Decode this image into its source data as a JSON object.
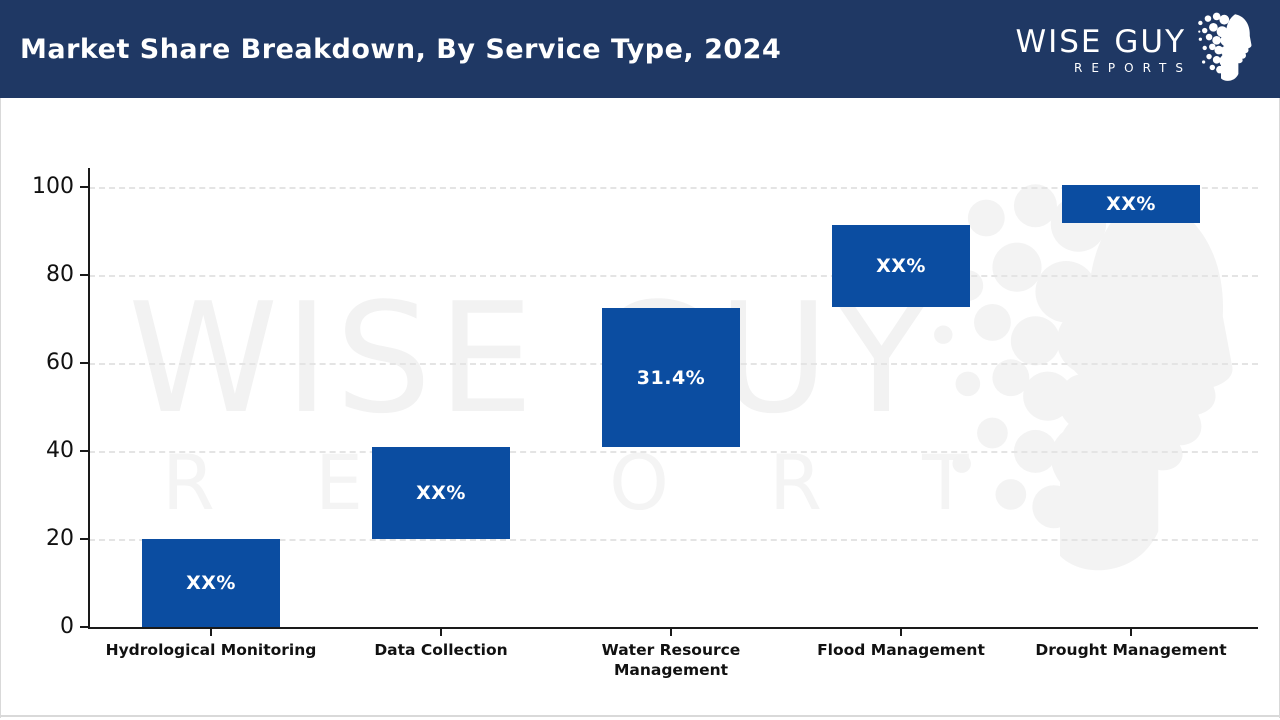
{
  "header": {
    "title": "Market Share Breakdown, By Service Type, 2024",
    "logo": {
      "line1": "WISE GUY",
      "line2": "REPORTS"
    }
  },
  "watermark": {
    "line1": "WISE GUY",
    "line2": "REPORTS"
  },
  "chart_data": {
    "type": "bar",
    "subtype": "floating-waterfall",
    "title": "Market Share Breakdown, By Service Type, 2024",
    "xlabel": "",
    "ylabel": "",
    "categories": [
      "Hydrological Monitoring",
      "Data Collection",
      "Water Resource Management",
      "Flood Management",
      "Drought Management"
    ],
    "segments": [
      {
        "category": "Hydrological Monitoring",
        "start": 0,
        "end": 20,
        "label": "XX%"
      },
      {
        "category": "Data Collection",
        "start": 20,
        "end": 41,
        "label": "XX%"
      },
      {
        "category": "Water Resource Management",
        "start": 41,
        "end": 72.4,
        "label": "31.4%"
      },
      {
        "category": "Flood Management",
        "start": 72.7,
        "end": 91.4,
        "label": "XX%"
      },
      {
        "category": "Drought Management",
        "start": 91.8,
        "end": 100.4,
        "label": "XX%"
      }
    ],
    "yticks": [
      0,
      20,
      40,
      60,
      80,
      100
    ],
    "ylim": [
      0,
      104
    ],
    "grid": "horizontal-dashed",
    "legend": "none",
    "bar_color": "#0b4da1"
  },
  "colors": {
    "header_bg": "#1f3864",
    "bar": "#0b4da1",
    "axis": "#1a1a1a",
    "grid": "#e4e4e4",
    "watermark": "#f2f2f2",
    "bar_label": "#ffffff",
    "title_text": "#ffffff"
  }
}
